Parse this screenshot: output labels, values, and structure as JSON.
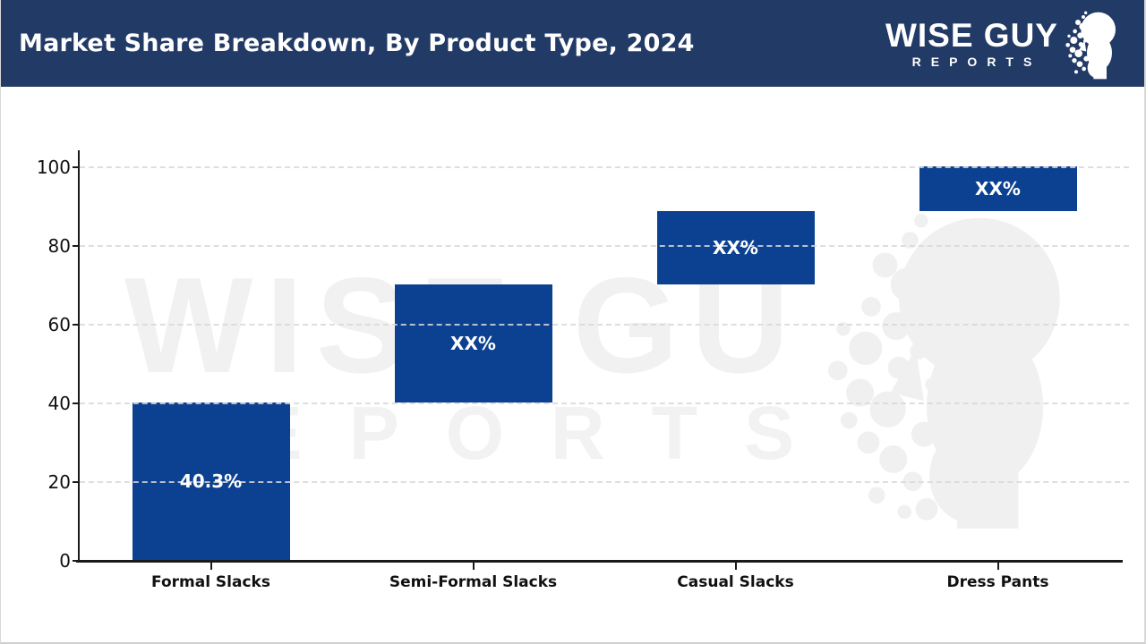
{
  "header": {
    "title": "Market Share Breakdown, By Product Type, 2024",
    "bg_color": "#223a66",
    "logo": {
      "line1": "WISE GUY",
      "line2": "REPORTS"
    }
  },
  "watermark": {
    "line1": "WISE GU",
    "line2": "REPORTS"
  },
  "chart_data": {
    "type": "bar",
    "subtype": "waterfall-stacked",
    "title": "Market Share Breakdown, By Product Type, 2024",
    "xlabel": "",
    "ylabel": "",
    "categories": [
      "Formal Slacks",
      "Semi-Formal Slacks",
      "Casual Slacks",
      "Dress Pants"
    ],
    "segments": [
      {
        "category": "Formal Slacks",
        "start": 0,
        "end": 40.3,
        "label": "40.3%"
      },
      {
        "category": "Semi-Formal Slacks",
        "start": 40.3,
        "end": 70.3,
        "label": "XX%"
      },
      {
        "category": "Casual Slacks",
        "start": 70.3,
        "end": 88.8,
        "label": "XX%"
      },
      {
        "category": "Dress Pants",
        "start": 88.8,
        "end": 100.3,
        "label": "XX%"
      }
    ],
    "yticks": [
      0,
      20,
      40,
      60,
      80,
      100
    ],
    "ylim": [
      0,
      104
    ],
    "grid": "horizontal-dashed",
    "legend": "none",
    "bar_color": "#0c4191",
    "bar_label_color": "#ffffff",
    "masked_value_placeholder": "XX%"
  }
}
